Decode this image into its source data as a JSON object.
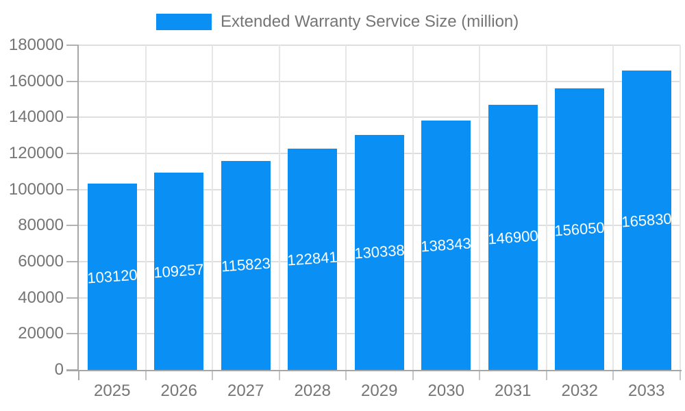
{
  "chart_data": {
    "type": "bar",
    "title": "Extended Warranty Service Size (million)",
    "legend": {
      "label": "Extended Warranty Service Size (million)",
      "position": "top"
    },
    "categories": [
      "2025",
      "2026",
      "2027",
      "2028",
      "2029",
      "2030",
      "2031",
      "2032",
      "2033"
    ],
    "series": [
      {
        "name": "Extended Warranty Service Size (million)",
        "values": [
          103120,
          109257,
          115823,
          122841,
          130338,
          138343,
          146900,
          156050,
          165830
        ]
      }
    ],
    "xlabel": "",
    "ylabel": "",
    "ylim": [
      0,
      180000
    ],
    "ytick_interval": 20000,
    "yticks": [
      0,
      20000,
      40000,
      60000,
      80000,
      100000,
      120000,
      140000,
      160000,
      180000
    ],
    "grid": true,
    "colors": {
      "bar": "#0a90f5",
      "bar_label_text": "#ffffff",
      "axis_text": "#757575",
      "axis_line": "#a6a6a6",
      "y_tick": "#b2b2b2",
      "x_tick": "#c6c6c6",
      "h_gridline": "#dedede",
      "v_gridline": "#e6e6e6",
      "background": "#ffffff"
    }
  }
}
